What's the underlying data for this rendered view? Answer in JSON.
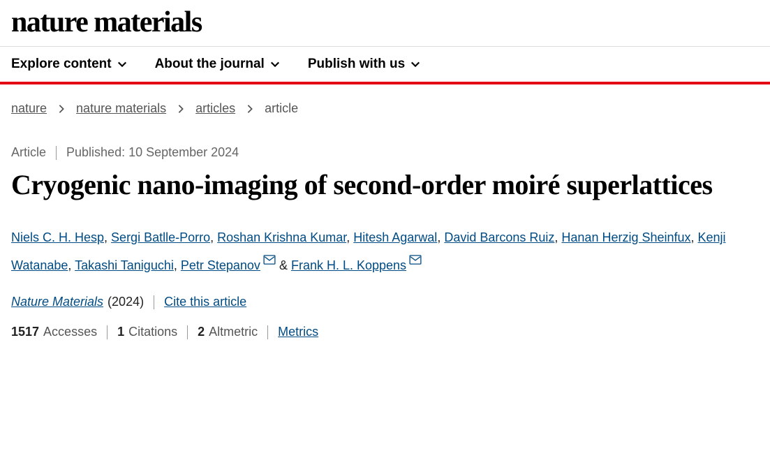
{
  "logo": "nature materials",
  "nav": {
    "items": [
      {
        "label": "Explore content"
      },
      {
        "label": "About the journal"
      },
      {
        "label": "Publish with us"
      }
    ]
  },
  "breadcrumb": {
    "items": [
      "nature",
      "nature materials",
      "articles"
    ],
    "current": "article"
  },
  "meta": {
    "type": "Article",
    "published": "Published: 10 September 2024"
  },
  "title": "Cryogenic nano-imaging of second-order moiré superlattices",
  "authors": [
    {
      "name": "Niels C. H. Hesp",
      "mail": false
    },
    {
      "name": "Sergi Batlle-Porro",
      "mail": false
    },
    {
      "name": "Roshan Krishna Kumar",
      "mail": false
    },
    {
      "name": "Hitesh Agarwal",
      "mail": false
    },
    {
      "name": "David Barcons Ruiz",
      "mail": false
    },
    {
      "name": "Hanan Herzig Sheinfux",
      "mail": false
    },
    {
      "name": "Kenji Watanabe",
      "mail": false
    },
    {
      "name": "Takashi Taniguchi",
      "mail": false
    },
    {
      "name": "Petr Stepanov",
      "mail": true
    },
    {
      "name": "Frank H. L. Koppens",
      "mail": true
    }
  ],
  "journal": {
    "name": "Nature Materials",
    "year": "(2024)",
    "cite": "Cite this article"
  },
  "metrics": {
    "accesses": {
      "value": "1517",
      "label": "Accesses"
    },
    "citations": {
      "value": "1",
      "label": "Citations"
    },
    "altmetric": {
      "value": "2",
      "label": "Altmetric"
    },
    "link": "Metrics"
  },
  "colors": {
    "accent_red": "#e30613",
    "link_blue": "#004b83",
    "text_gray": "#666666"
  }
}
